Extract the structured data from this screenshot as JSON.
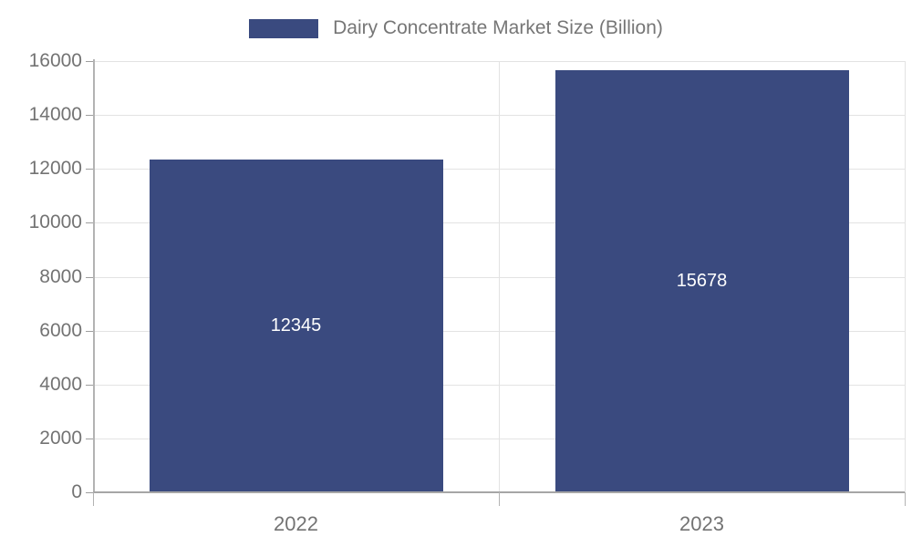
{
  "chart_data": {
    "type": "bar",
    "title": "Dairy Concentrate Market Size (Billion)",
    "categories": [
      "2022",
      "2023"
    ],
    "series": [
      {
        "name": "Dairy Concentrate Market Size (Billion)",
        "values": [
          12345,
          15678
        ]
      }
    ],
    "bar_labels": [
      "12345",
      "15678"
    ],
    "xlabel": "",
    "ylabel": "",
    "ylim": [
      0,
      16000
    ],
    "ytick_step": 2000,
    "yticks": [
      0,
      2000,
      4000,
      6000,
      8000,
      10000,
      12000,
      14000,
      16000
    ],
    "grid": true,
    "legend_position": "top-center"
  },
  "colors": {
    "bar": "#3A4A7F",
    "bar_label": "#ffffff",
    "legend_text": "#767676",
    "axis_label": "#737373",
    "axis_line": "#a6a6a6",
    "gridline": "#e3e3e3",
    "background": "#ffffff"
  }
}
